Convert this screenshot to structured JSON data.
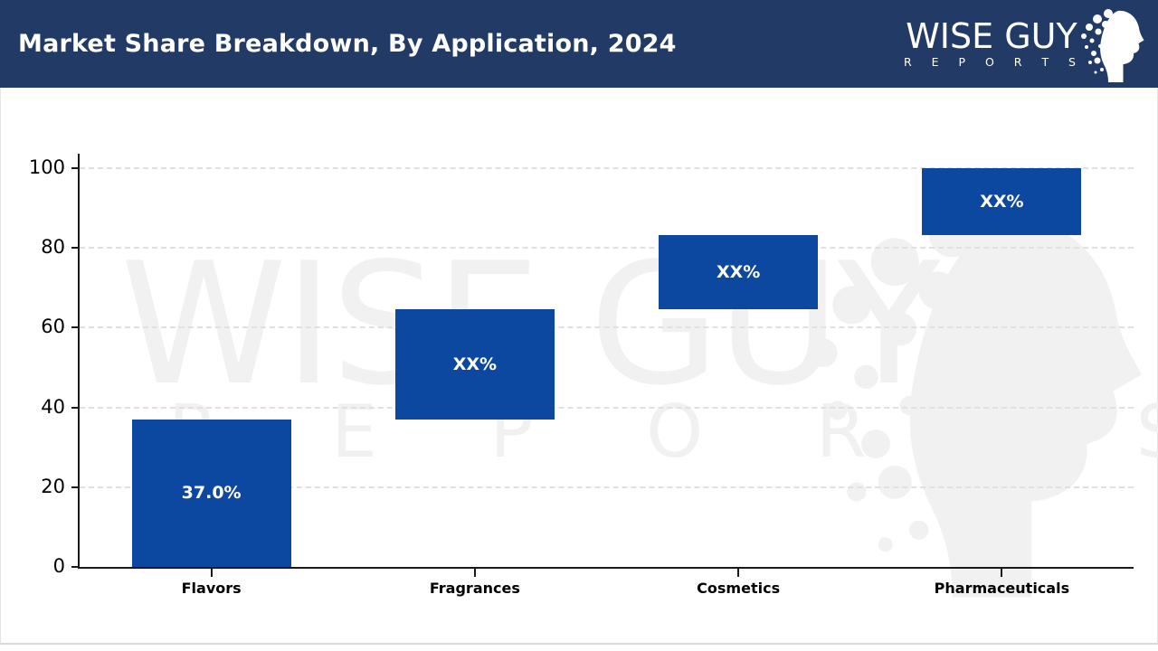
{
  "header": {
    "title": "Market Share Breakdown, By Application, 2024",
    "bg_color": "#223a66",
    "logo": {
      "line1": "WISE GUY",
      "line2": "R E P O R T S"
    }
  },
  "watermark": {
    "line1": "WISE GUY",
    "line2": "R E P O R T S"
  },
  "chart_data": {
    "type": "bar",
    "subtype": "waterfall-floating-bars",
    "title": "Market Share Breakdown, By Application, 2024",
    "categories": [
      "Flavors",
      "Fragrances",
      "Cosmetics",
      "Pharmaceuticals"
    ],
    "segments": [
      {
        "category": "Flavors",
        "start": 0,
        "end": 37.0,
        "label": "37.0%"
      },
      {
        "category": "Fragrances",
        "start": 37.0,
        "end": 64.7,
        "label": "XX%"
      },
      {
        "category": "Cosmetics",
        "start": 64.7,
        "end": 83.3,
        "label": "XX%"
      },
      {
        "category": "Pharmaceuticals",
        "start": 83.3,
        "end": 100.0,
        "label": "XX%"
      }
    ],
    "y_ticks": [
      0,
      20,
      40,
      60,
      80,
      100
    ],
    "ylim": [
      0,
      105
    ],
    "xlabel": "",
    "ylabel": "",
    "grid": "dashed-horizontal",
    "legend": "none",
    "bar_color": "#0c48a0",
    "axis_color": "#1a1a1a",
    "grid_color": "#e0e0e0"
  }
}
